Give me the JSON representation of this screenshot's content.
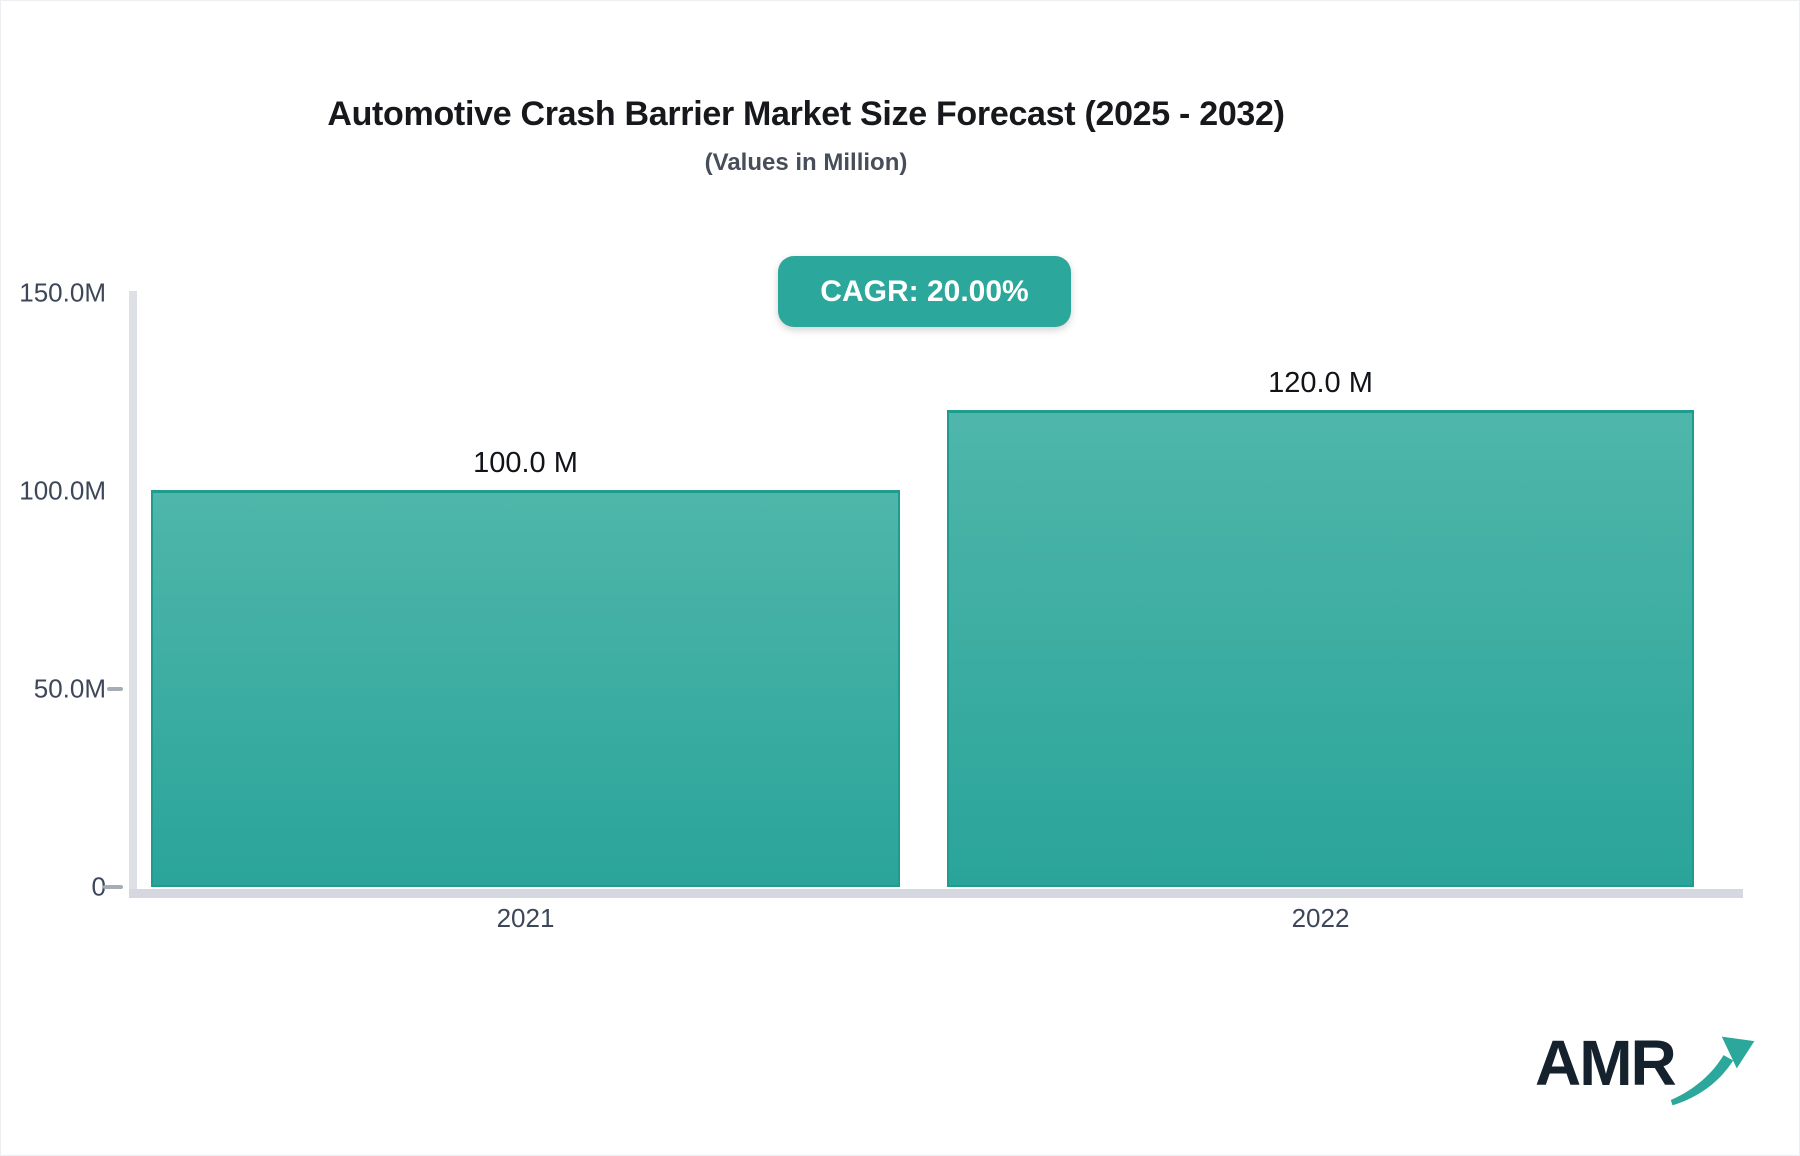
{
  "header": {
    "title": "Automotive Crash Barrier Market Size Forecast (2025 - 2032)",
    "subtitle": "(Values in Million)",
    "cagr_badge": "CAGR: 20.00%"
  },
  "chart_data": {
    "type": "bar",
    "title": "Automotive Crash Barrier Market Size Forecast (2025 - 2032)",
    "subtitle": "(Values in Million)",
    "categories": [
      "2021",
      "2022"
    ],
    "values": [
      100,
      120
    ],
    "value_labels": [
      "100.0 M",
      "120.0 M"
    ],
    "unit": "M",
    "xlabel": "",
    "ylabel": "",
    "ylim": [
      0,
      150
    ],
    "yticks": [
      {
        "value": 150,
        "label": "150.0M"
      },
      {
        "value": 100,
        "label": "100.0M"
      },
      {
        "value": 50,
        "label": "50.0M"
      },
      {
        "value": 0,
        "label": "0"
      }
    ],
    "grid": false,
    "legend": false,
    "cagr": "20.00%"
  },
  "colors": {
    "accent_teal": "#2BA89B",
    "bar_gradient_top": "#4FB6AA",
    "bar_gradient_bottom": "#2AA49A",
    "bar_border": "#1E9C8F",
    "axis_line": "#DDE0E5",
    "tick_label": "#3D4759",
    "logo_navy": "#15222D"
  },
  "logo": {
    "text": "AMR",
    "icon": "trending-up-arrow-icon"
  }
}
